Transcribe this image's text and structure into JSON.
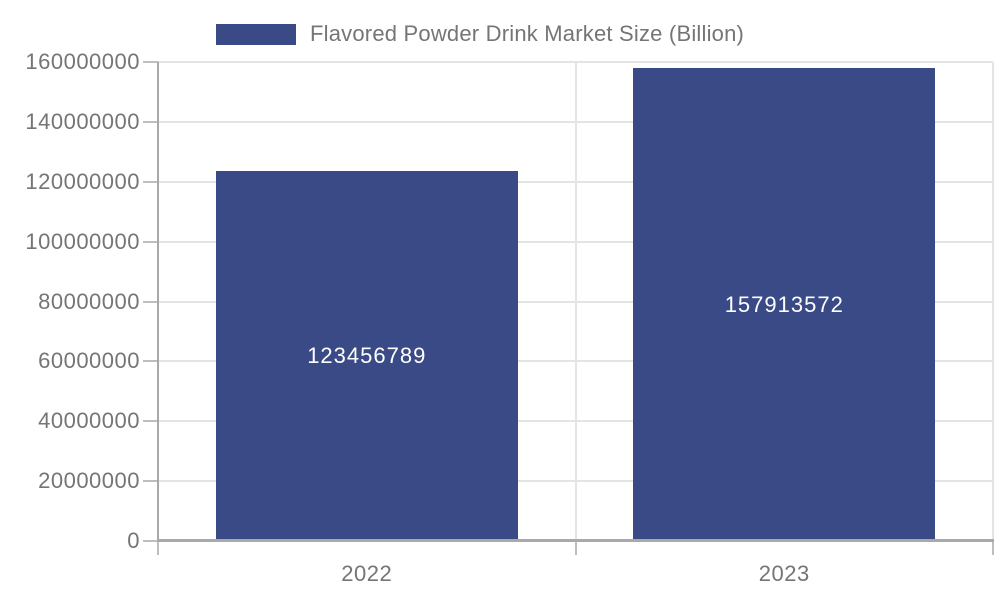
{
  "chart_data": {
    "type": "bar",
    "title": "Flavored Powder Drink Market Size (Billion)",
    "categories": [
      "2022",
      "2023"
    ],
    "values": [
      123456789,
      157913572
    ],
    "bar_value_labels": [
      "123456789",
      "157913572"
    ],
    "series": [
      {
        "name": "Flavored Powder Drink Market Size (Billion)",
        "values": [
          123456789,
          157913572
        ]
      }
    ],
    "xlabel": "",
    "ylabel": "",
    "ylim": [
      0,
      160000000
    ],
    "yticks": [
      0,
      20000000,
      40000000,
      60000000,
      80000000,
      100000000,
      120000000,
      140000000,
      160000000
    ],
    "ytick_labels": [
      "0",
      "20000000",
      "40000000",
      "60000000",
      "80000000",
      "100000000",
      "120000000",
      "140000000",
      "160000000"
    ],
    "grid": true,
    "legend_position": "top-left"
  },
  "colors": {
    "bar": "#3A4A87",
    "label_text": "#757575",
    "grid_line": "#E4E4E4",
    "axis_line": "#A9A9A9",
    "tick_mark": "#BEBEBE",
    "bar_value_text": "#FFFFFF",
    "background": "#FFFFFF"
  }
}
